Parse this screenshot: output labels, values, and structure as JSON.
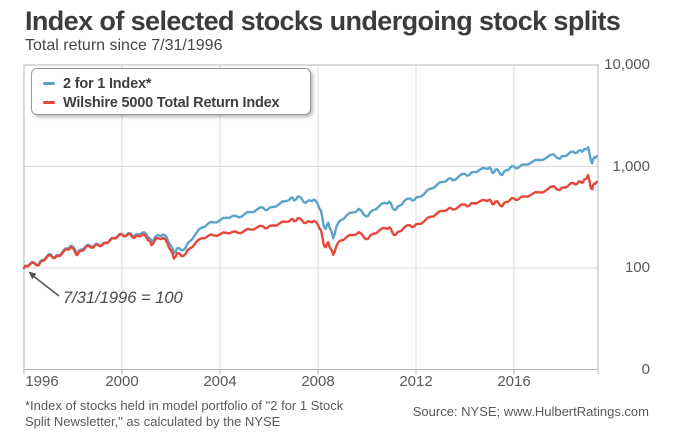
{
  "header": {
    "title": "Index of selected stocks undergoing stock splits",
    "subtitle": "Total return since 7/31/1996"
  },
  "annotation": {
    "label": "7/31/1996 = 100"
  },
  "footer": {
    "footnote_line1": "*Index of stocks held in model portfolio of \"2 for 1 Stock",
    "footnote_line2": "Split Newsletter,\" as calculated by the NYSE",
    "source": "Source: NYSE; www.HulbertRatings.com"
  },
  "colors": {
    "series_blue": "#5BA3C9",
    "series_red": "#E5483A",
    "grid": "#D8D8D8",
    "plot_border": "#B7B7B7",
    "title_text": "#3C3C3C",
    "axis_text": "#595959",
    "annotation_text": "#4C4C4C"
  },
  "chart_data": {
    "type": "line",
    "title": "Index of selected stocks undergoing stock splits",
    "subtitle": "Total return since 7/31/1996",
    "xlabel": "",
    "ylabel": "",
    "base_note": "7/31/1996 = 100",
    "legend_position": "top-left",
    "grid": true,
    "x_axis": {
      "tick_labels": [
        "1996",
        "2000",
        "2004",
        "2008",
        "2012",
        "2016"
      ],
      "tick_years": [
        1996,
        2000,
        2004,
        2008,
        2012,
        2016
      ],
      "domain": [
        1996.58,
        2020.0
      ]
    },
    "y_axis": {
      "scale": "log",
      "side": "right",
      "tick_labels": [
        "10,000",
        "1,000",
        "100",
        "0"
      ],
      "tick_values": [
        10000,
        1000,
        100,
        0
      ],
      "ylim": [
        100,
        10000
      ]
    },
    "x": [
      1996.58,
      1996.67,
      1996.83,
      1997.0,
      1997.17,
      1997.33,
      1997.5,
      1997.67,
      1997.83,
      1998.0,
      1998.17,
      1998.33,
      1998.5,
      1998.67,
      1998.75,
      1998.92,
      1999.08,
      1999.25,
      1999.42,
      1999.58,
      1999.75,
      1999.92,
      2000.08,
      2000.25,
      2000.42,
      2000.58,
      2000.75,
      2000.92,
      2001.08,
      2001.25,
      2001.42,
      2001.58,
      2001.7,
      2001.78,
      2001.92,
      2002.08,
      2002.25,
      2002.42,
      2002.58,
      2002.7,
      2002.83,
      2003.0,
      2003.17,
      2003.33,
      2003.58,
      2003.83,
      2004.08,
      2004.33,
      2004.58,
      2004.83,
      2005.08,
      2005.33,
      2005.58,
      2005.83,
      2006.08,
      2006.33,
      2006.5,
      2006.75,
      2007.0,
      2007.25,
      2007.5,
      2007.6,
      2007.75,
      2007.92,
      2008.08,
      2008.25,
      2008.42,
      2008.58,
      2008.7,
      2008.8,
      2008.9,
      2009.0,
      2009.1,
      2009.2,
      2009.33,
      2009.5,
      2009.75,
      2010.0,
      2010.25,
      2010.45,
      2010.62,
      2010.83,
      2011.08,
      2011.33,
      2011.5,
      2011.62,
      2011.75,
      2011.92,
      2012.08,
      2012.33,
      2012.5,
      2012.67,
      2012.92,
      2013.17,
      2013.42,
      2013.67,
      2013.92,
      2014.08,
      2014.33,
      2014.58,
      2014.75,
      2014.92,
      2015.17,
      2015.42,
      2015.58,
      2015.7,
      2015.83,
      2015.96,
      2016.1,
      2016.25,
      2016.42,
      2016.58,
      2016.75,
      2017.0,
      2017.3,
      2017.6,
      2017.9,
      2018.2,
      2018.45,
      2018.6,
      2018.8,
      2019.0,
      2019.15,
      2019.3,
      2019.4,
      2019.5,
      2019.6,
      2019.7,
      2019.77,
      2019.85,
      2019.95
    ],
    "series": [
      {
        "name": "2 for 1 Index*",
        "color": "#5BA3C9",
        "values": [
          100,
          105,
          110,
          113,
          108,
          120,
          129,
          136,
          127,
          134,
          146,
          156,
          166,
          150,
          139,
          152,
          162,
          168,
          163,
          173,
          168,
          178,
          188,
          198,
          208,
          216,
          210,
          220,
          205,
          215,
          225,
          213,
          197,
          180,
          200,
          210,
          214,
          196,
          165,
          140,
          156,
          150,
          158,
          182,
          215,
          250,
          272,
          282,
          295,
          312,
          325,
          316,
          340,
          355,
          375,
          395,
          372,
          400,
          428,
          455,
          495,
          462,
          505,
          478,
          438,
          462,
          472,
          420,
          368,
          268,
          242,
          280,
          238,
          196,
          255,
          295,
          330,
          352,
          382,
          336,
          326,
          372,
          408,
          438,
          450,
          392,
          375,
          412,
          452,
          485,
          465,
          500,
          538,
          605,
          655,
          705,
          760,
          732,
          800,
          845,
          820,
          880,
          925,
          958,
          980,
          865,
          935,
          892,
          825,
          920,
          968,
          1000,
          970,
          1045,
          1100,
          1160,
          1215,
          1320,
          1190,
          1270,
          1330,
          1400,
          1370,
          1440,
          1420,
          1490,
          1545,
          1210,
          1075,
          1230,
          1260
        ]
      },
      {
        "name": "Wilshire 5000 Total Return Index",
        "color": "#E5483A",
        "values": [
          100,
          104,
          109,
          112,
          106,
          118,
          127,
          134,
          125,
          131,
          143,
          152,
          161,
          144,
          134,
          148,
          158,
          164,
          160,
          170,
          166,
          176,
          186,
          196,
          206,
          214,
          206,
          216,
          198,
          206,
          214,
          200,
          185,
          168,
          188,
          196,
          198,
          178,
          148,
          124,
          140,
          132,
          137,
          155,
          176,
          196,
          206,
          210,
          215,
          222,
          227,
          221,
          233,
          240,
          250,
          258,
          247,
          262,
          274,
          285,
          302,
          289,
          308,
          296,
          277,
          286,
          291,
          266,
          236,
          175,
          160,
          179,
          154,
          135,
          165,
          186,
          202,
          211,
          226,
          200,
          194,
          217,
          234,
          247,
          251,
          221,
          212,
          230,
          249,
          264,
          255,
          272,
          289,
          320,
          342,
          365,
          387,
          376,
          404,
          422,
          410,
          436,
          452,
          463,
          472,
          424,
          453,
          434,
          405,
          448,
          470,
          485,
          473,
          506,
          531,
          557,
          581,
          640,
          585,
          622,
          648,
          690,
          672,
          712,
          700,
          752,
          825,
          640,
          598,
          680,
          705
        ]
      }
    ]
  }
}
